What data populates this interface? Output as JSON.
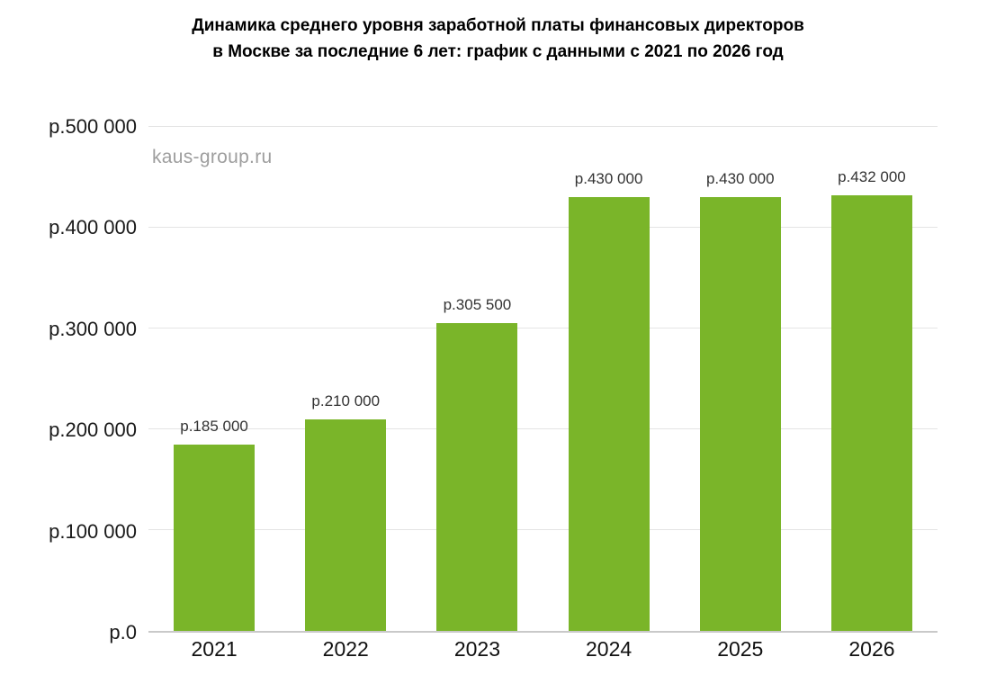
{
  "title": {
    "line1": "Динамика среднего уровня заработной платы финансовых директоров",
    "line2": "в Москве за последние 6 лет: график с данными с 2021 по 2026 год"
  },
  "watermark": "kaus-group.ru",
  "chart_data": {
    "type": "bar",
    "title": "Динамика среднего уровня заработной платы финансовых директоров в Москве за последние 6 лет: график с данными с 2021 по 2026 год",
    "categories": [
      "2021",
      "2022",
      "2023",
      "2024",
      "2025",
      "2026"
    ],
    "values": [
      185000,
      210000,
      305500,
      430000,
      430000,
      432000
    ],
    "bar_labels": [
      "р.185 000",
      "р.210 000",
      "р.305 500",
      "р.430 000",
      "р.430 000",
      "р.432 000"
    ],
    "y_ticks": [
      {
        "value": 0,
        "label": "р.0"
      },
      {
        "value": 100000,
        "label": "р.100 000"
      },
      {
        "value": 200000,
        "label": "р.200 000"
      },
      {
        "value": 300000,
        "label": "р.300 000"
      },
      {
        "value": 400000,
        "label": "р.400 000"
      },
      {
        "value": 500000,
        "label": "р.500 000"
      }
    ],
    "ylim": [
      0,
      500000
    ],
    "xlabel": "",
    "ylabel": "",
    "grid": true,
    "legend": "none",
    "bar_color": "#7ab529",
    "watermark": "kaus-group.ru"
  }
}
